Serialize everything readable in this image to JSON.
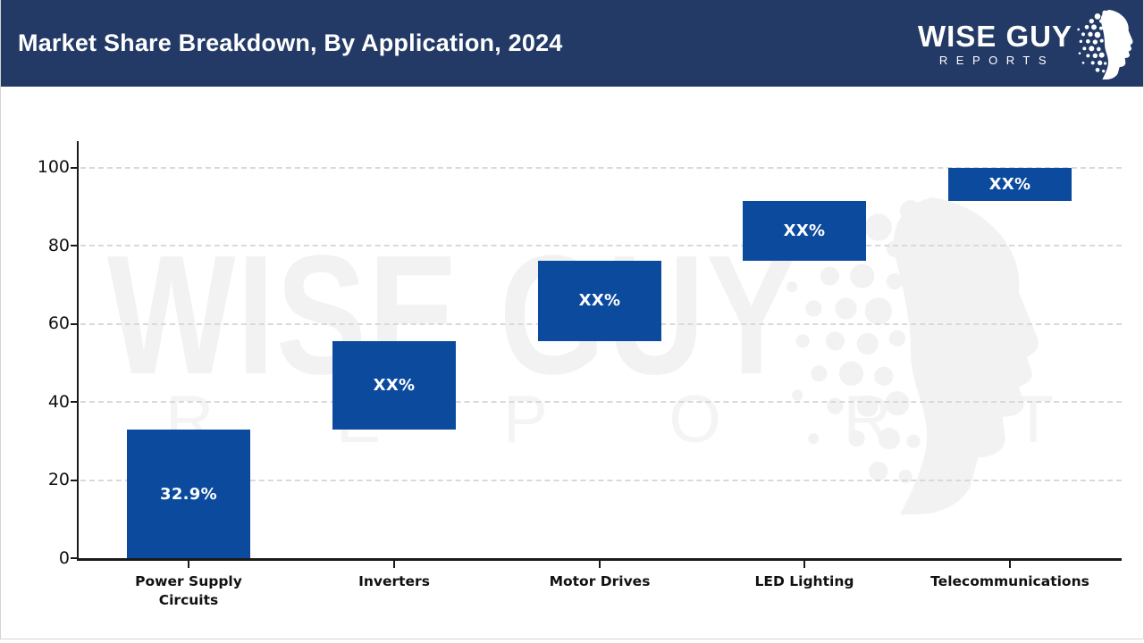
{
  "header": {
    "title": "Market Share Breakdown, By Application, 2024",
    "logo_line1": "WISE GUY",
    "logo_line2": "REPORTS"
  },
  "watermark": {
    "line1": "WISE GUY",
    "line2": "R E P O R T S"
  },
  "colors": {
    "header_bg": "#233a66",
    "bar": "#0c4a9e",
    "grid": "#d9d9d9",
    "axis": "#1a1a1a",
    "value_label": "#ffffff",
    "watermark": "#f2f2f2",
    "page_border": "#d5d5d5"
  },
  "chart_data": {
    "type": "bar",
    "subtype": "waterfall",
    "title": "Market Share Breakdown, By Application, 2024",
    "xlabel": "",
    "ylabel": "",
    "ylim": [
      0,
      105
    ],
    "yticks": [
      0,
      20,
      40,
      60,
      80,
      100
    ],
    "grid": "horizontal-dashed",
    "legend": "none",
    "categories": [
      "Power Supply Circuits",
      "Inverters",
      "Motor Drives",
      "LED Lighting",
      "Telecommunications"
    ],
    "segments": [
      {
        "category": "Power Supply Circuits",
        "start": 0,
        "end": 32.9,
        "value_label": "32.9%"
      },
      {
        "category": "Inverters",
        "start": 32.9,
        "end": 55.6,
        "value_label": "XX%"
      },
      {
        "category": "Motor Drives",
        "start": 55.6,
        "end": 76.2,
        "value_label": "XX%"
      },
      {
        "category": "LED Lighting",
        "start": 76.2,
        "end": 91.4,
        "value_label": "XX%"
      },
      {
        "category": "Telecommunications",
        "start": 91.4,
        "end": 100,
        "value_label": "XX%"
      }
    ]
  }
}
